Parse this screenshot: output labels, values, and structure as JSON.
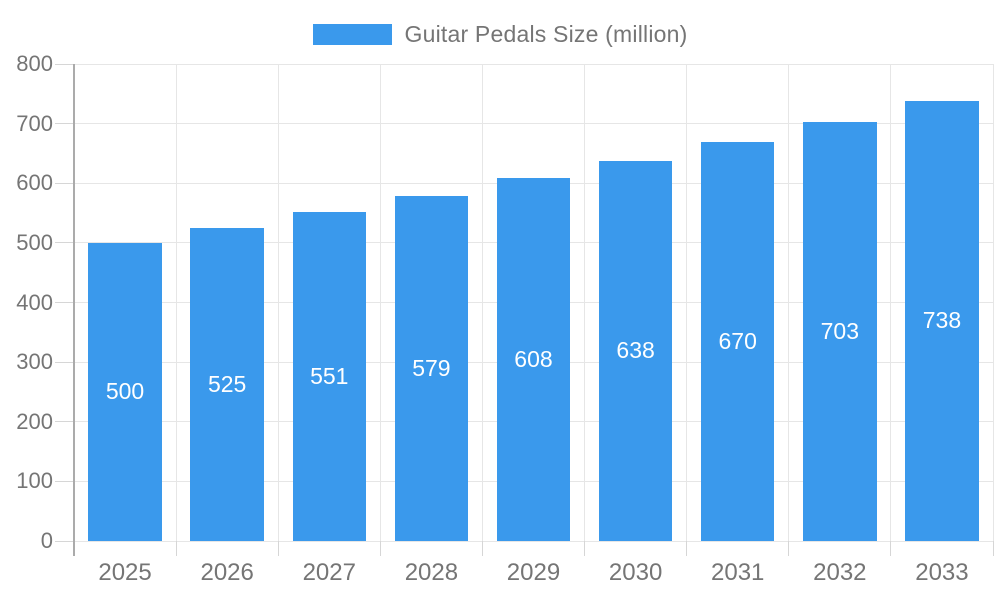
{
  "legend": {
    "label": "Guitar Pedals Size (million)"
  },
  "colors": {
    "bar": "#3A99EC",
    "axis_text": "#757575",
    "bar_label_text": "#ffffff",
    "gridline": "#e6e6e6",
    "tick": "#d6d6d6",
    "axis_line": "#ababab",
    "background": "#ffffff"
  },
  "chart_data": {
    "type": "bar",
    "title": "Guitar Pedals Size (million)",
    "series": [
      {
        "name": "Guitar Pedals Size (million)",
        "values": [
          500,
          525,
          551,
          579,
          608,
          638,
          670,
          703,
          738
        ]
      }
    ],
    "categories": [
      "2025",
      "2026",
      "2027",
      "2028",
      "2029",
      "2030",
      "2031",
      "2032",
      "2033"
    ],
    "xlabel": "",
    "ylabel": "",
    "ylim": [
      0,
      800
    ],
    "ytick_step": 100,
    "yticks": [
      0,
      100,
      200,
      300,
      400,
      500,
      600,
      700,
      800
    ],
    "grid": true,
    "legend_position": "top-center",
    "value_labels": "inside-center"
  }
}
